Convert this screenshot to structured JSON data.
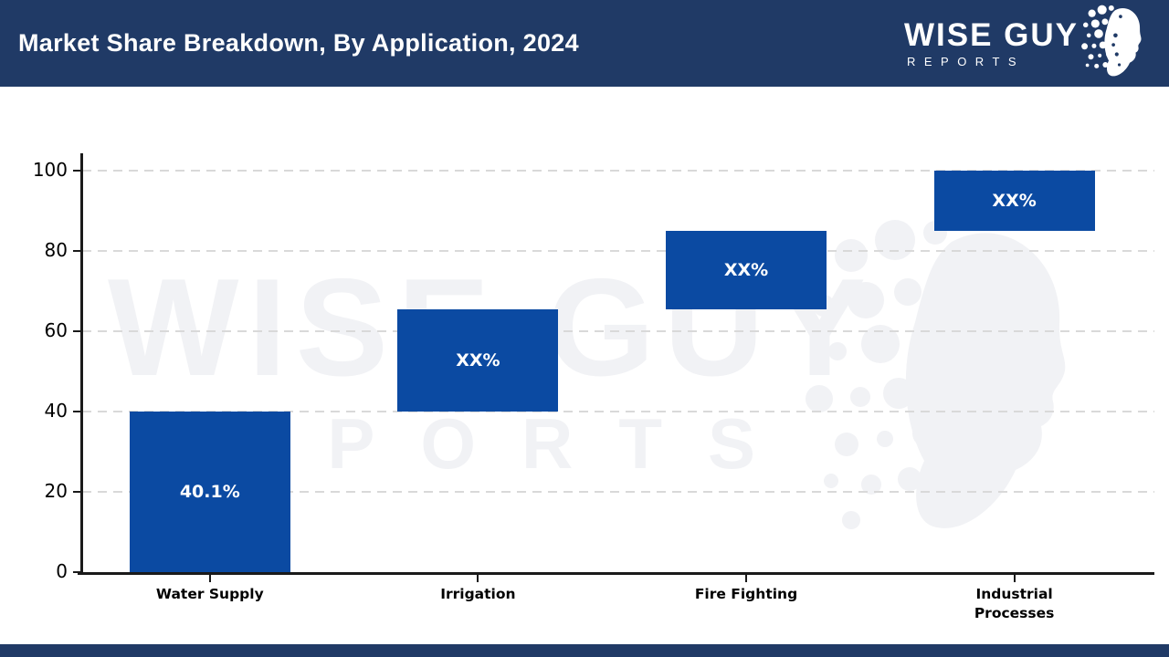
{
  "header": {
    "title": "Market Share Breakdown, By Application, 2024",
    "bg_color": "#203a66",
    "logo": {
      "line1": "WISE GUY",
      "line2": "REPORTS"
    }
  },
  "watermark": {
    "line1": "WISE GUY",
    "line2": "REPORTS"
  },
  "footer": {
    "bg_color": "#203a66"
  },
  "chart_data": {
    "type": "bar",
    "subtype": "waterfall",
    "title": "Market Share Breakdown, By Application, 2024",
    "categories": [
      "Water Supply",
      "Irrigation",
      "Fire Fighting",
      "Industrial\nProcesses"
    ],
    "segments": [
      {
        "category": "Water Supply",
        "start": 0,
        "end": 40.1,
        "data_label": "40.1%"
      },
      {
        "category": "Irrigation",
        "start": 40.1,
        "end": 65.5,
        "data_label": "XX%"
      },
      {
        "category": "Fire Fighting",
        "start": 65.5,
        "end": 85,
        "data_label": "XX%"
      },
      {
        "category": "Industrial\nProcesses",
        "start": 85,
        "end": 100,
        "data_label": "XX%"
      }
    ],
    "yticks": [
      0,
      20,
      40,
      60,
      80,
      100
    ],
    "ylim": [
      0,
      104
    ],
    "xlabel": "",
    "ylabel": "",
    "grid": "horizontal-dashed",
    "legend": "none",
    "bar_color": "#0b4aa2",
    "bar_label_color": "#ffffff",
    "axis_color": "#1a1a1a",
    "grid_color": "#d9d9d9"
  }
}
